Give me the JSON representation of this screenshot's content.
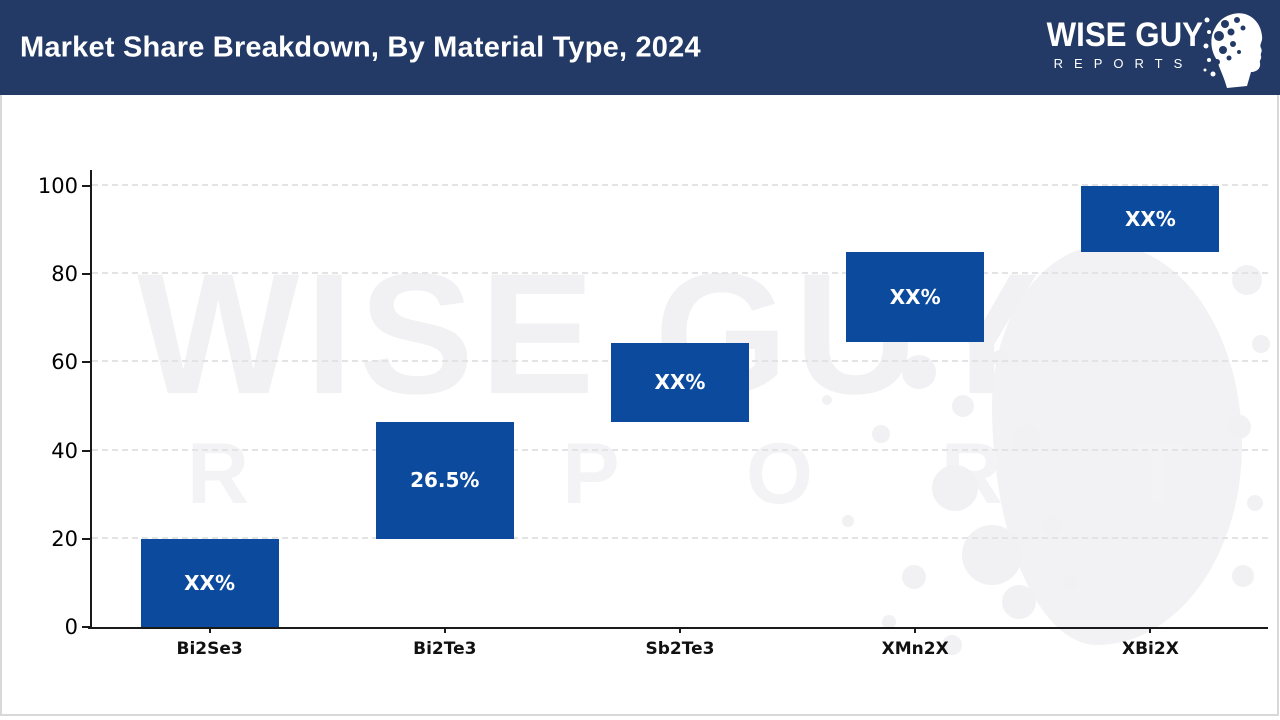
{
  "header": {
    "title": "Market Share Breakdown, By Material Type, 2024",
    "logo": {
      "line1": "WISE GUY",
      "line2": "REPORTS",
      "icon": "dotted-face-profile-icon"
    }
  },
  "watermark": {
    "line1": "WISE GUY",
    "line2": "R E P O R T S"
  },
  "colors": {
    "header_bg": "#233a66",
    "bar": "#0c4a9e",
    "axis": "#1a1a1a",
    "grid": "#e3e3e3",
    "bar_label_text": "#ffffff"
  },
  "chart_data": {
    "type": "bar",
    "subtype": "waterfall-floating-bars",
    "title": "Market Share Breakdown, By Material Type, 2024",
    "xlabel": "",
    "ylabel": "",
    "categories": [
      "Bi2Se3",
      "Bi2Te3",
      "Sb2Te3",
      "XMn2X",
      "XBi2X"
    ],
    "bars": [
      {
        "category": "Bi2Se3",
        "start": 0,
        "end": 20,
        "label": "XX%"
      },
      {
        "category": "Bi2Te3",
        "start": 20,
        "end": 46.5,
        "label": "26.5%"
      },
      {
        "category": "Sb2Te3",
        "start": 46.5,
        "end": 64.5,
        "label": "XX%"
      },
      {
        "category": "XMn2X",
        "start": 64.5,
        "end": 85,
        "label": "XX%"
      },
      {
        "category": "XBi2X",
        "start": 85,
        "end": 100,
        "label": "XX%"
      }
    ],
    "yticks": [
      0,
      20,
      40,
      60,
      80,
      100
    ],
    "ylim": [
      0,
      103.6
    ],
    "grid": "horizontal-dashed",
    "legend": "none"
  }
}
